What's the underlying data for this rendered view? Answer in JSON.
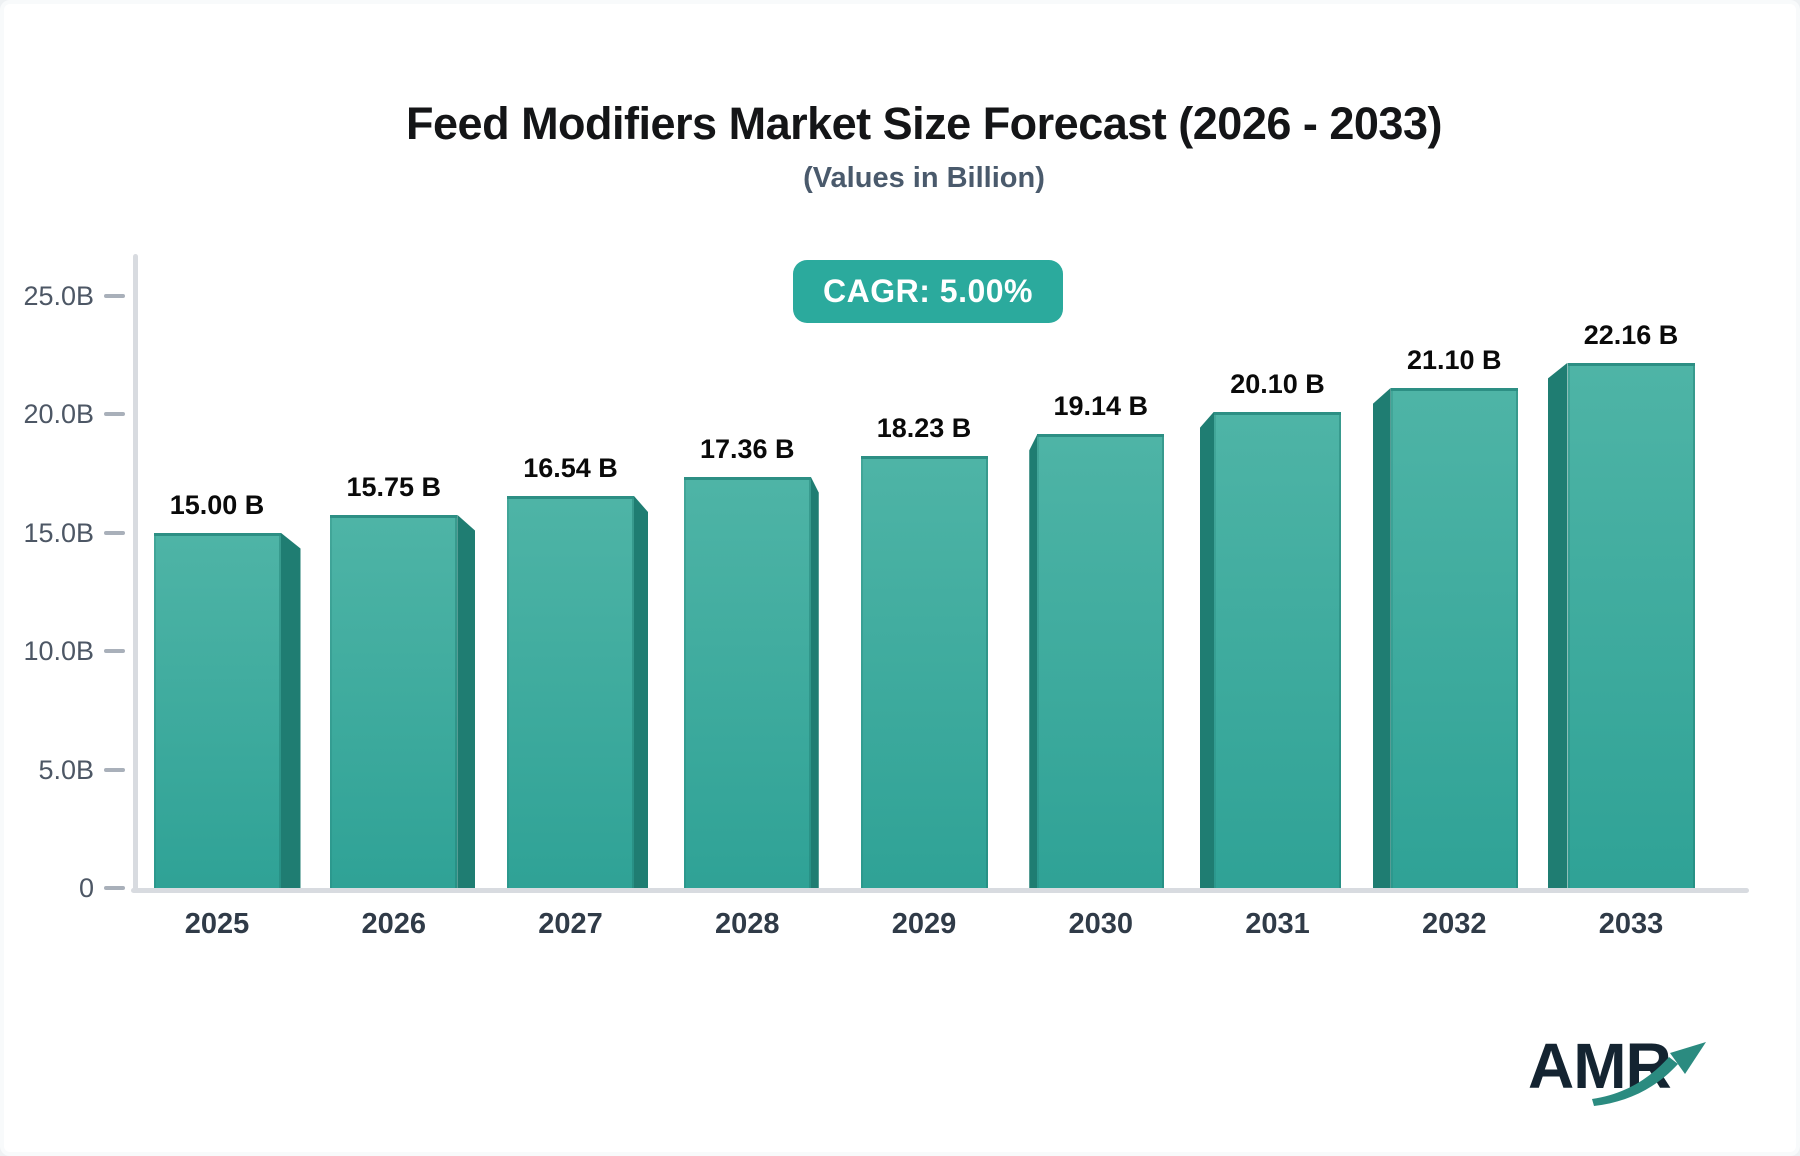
{
  "chart_data": {
    "type": "bar",
    "title": "Feed Modifiers Market Size Forecast (2026 - 2033)",
    "subtitle": "(Values in Billion)",
    "cagr_label": "CAGR: 5.00%",
    "categories": [
      "2025",
      "2026",
      "2027",
      "2028",
      "2029",
      "2030",
      "2031",
      "2032",
      "2033"
    ],
    "values": [
      15.0,
      15.75,
      16.54,
      17.36,
      18.23,
      19.14,
      20.1,
      21.1,
      22.16
    ],
    "value_labels": [
      "15.00 B",
      "15.75 B",
      "16.54 B",
      "17.36 B",
      "18.23 B",
      "19.14 B",
      "20.10 B",
      "21.10 B",
      "22.16 B"
    ],
    "xlabel": "",
    "ylabel": "",
    "ylim": [
      0,
      25
    ],
    "yticks": [
      {
        "value": 0,
        "label": "0"
      },
      {
        "value": 5,
        "label": "5.0B"
      },
      {
        "value": 10,
        "label": "10.0B"
      },
      {
        "value": 15,
        "label": "15.0B"
      },
      {
        "value": 20,
        "label": "20.0B"
      },
      {
        "value": 25,
        "label": "25.0B"
      }
    ],
    "grid": false,
    "legend": false,
    "colors": {
      "accent": "#2baa9d",
      "bar_top": "#4eb4a6",
      "bar_bottom": "#2fa296",
      "bar_side": "#1f7d72",
      "bar_edge": "#2d8f84",
      "axis_line": "#d8dbe0",
      "tick_dash": "#a9b0ba",
      "ytick_text": "#4d5765",
      "xtick_text": "#303b48",
      "value_text": "#0a0a0a",
      "title_text": "#141517",
      "subtitle_text": "#4a5a6c"
    }
  },
  "logo": {
    "text": "AMR",
    "text_color": "#142431",
    "arrow_color": "#2b8b80"
  }
}
